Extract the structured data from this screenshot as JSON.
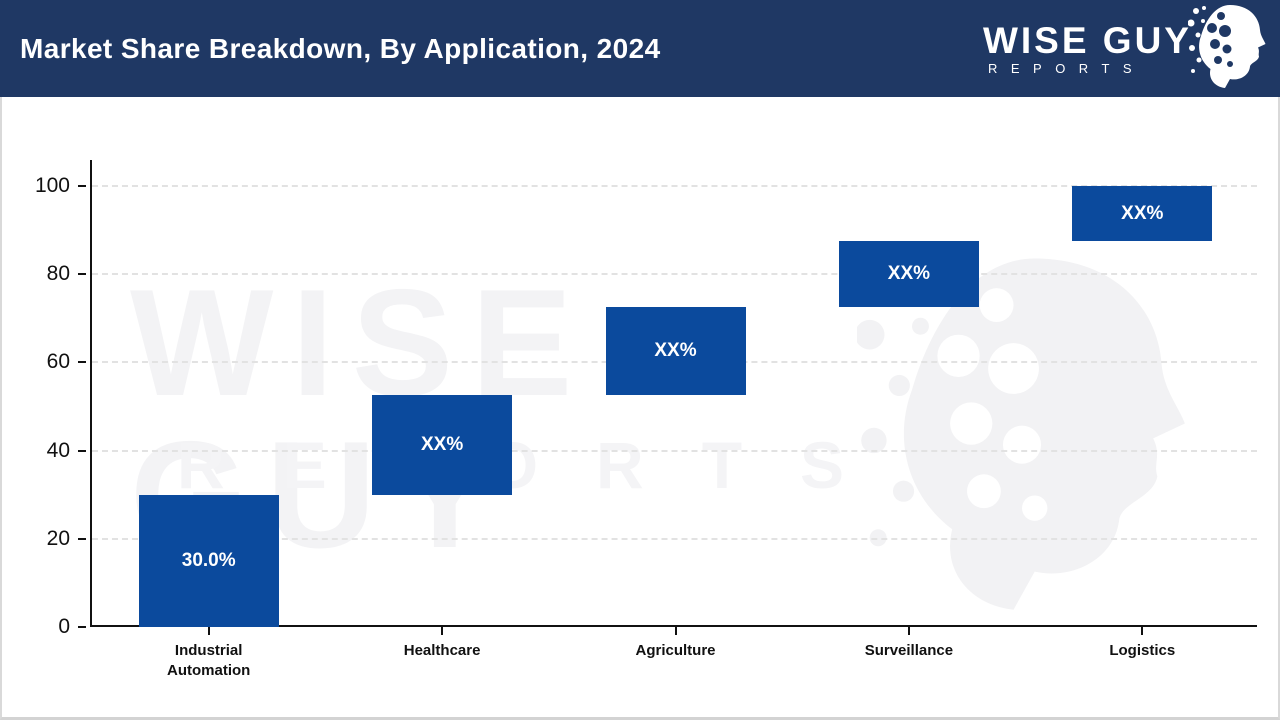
{
  "header": {
    "title": "Market Share Breakdown, By Application, 2024",
    "logo": {
      "line1": "WISE GUY",
      "line2": "REPORTS"
    }
  },
  "watermark": {
    "line1": "WISE GUY",
    "line2": "REPORTS"
  },
  "colors": {
    "header_bg": "#1F3864",
    "bar": "#0B4A9D",
    "bar_label": "#ffffff",
    "gridline": "#e2e2e2",
    "axis": "#111111",
    "watermark": "#f3f3f5",
    "page_border": "#d9d9d9"
  },
  "chart_data": {
    "type": "bar",
    "subtype": "waterfall",
    "title": "Market Share Breakdown, By Application, 2024",
    "categories": [
      "Industrial Automation",
      "Healthcare",
      "Agriculture",
      "Surveillance",
      "Logistics"
    ],
    "segments": [
      {
        "category": "Industrial Automation",
        "start": 0,
        "end": 30,
        "label": "30.0%"
      },
      {
        "category": "Healthcare",
        "start": 30,
        "end": 52.5,
        "label": "XX%"
      },
      {
        "category": "Agriculture",
        "start": 52.5,
        "end": 72.5,
        "label": "XX%"
      },
      {
        "category": "Surveillance",
        "start": 72.5,
        "end": 87.5,
        "label": "XX%"
      },
      {
        "category": "Logistics",
        "start": 87.5,
        "end": 100,
        "label": "XX%"
      }
    ],
    "xlabel": "",
    "ylabel": "",
    "ylim": [
      0,
      100
    ],
    "yticks": [
      0,
      20,
      40,
      60,
      80,
      100
    ],
    "grid": "dashed-horizontal",
    "legend": "none",
    "bar_color": "#0B4A9D",
    "bar_label_color": "#ffffff"
  }
}
